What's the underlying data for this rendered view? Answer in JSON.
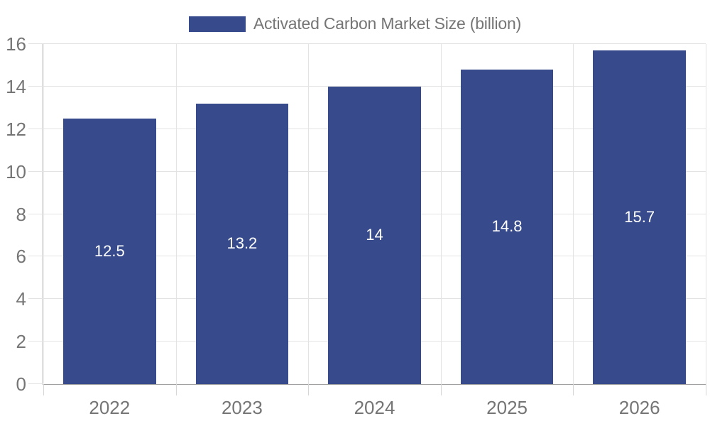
{
  "legend": {
    "label": "Activated Carbon Market Size (billion)"
  },
  "chart_data": {
    "type": "bar",
    "title": "Activated Carbon Market Size (billion)",
    "categories": [
      "2022",
      "2023",
      "2024",
      "2025",
      "2026"
    ],
    "series": [
      {
        "name": "Activated Carbon Market Size (billion)",
        "values": [
          12.5,
          13.2,
          14,
          14.8,
          15.7
        ]
      }
    ],
    "value_labels": [
      "12.5",
      "13.2",
      "14",
      "14.8",
      "15.7"
    ],
    "xlabel": "",
    "ylabel": "",
    "ylim": [
      0,
      16
    ],
    "yticks": [
      0,
      2,
      4,
      6,
      8,
      10,
      12,
      14,
      16
    ],
    "grid": true,
    "legend_position": "top-center",
    "bar_width_fraction": 0.7,
    "colors": {
      "bar": "#364A8C",
      "grid": "#E3E3E3",
      "axis": "#A0A0A0",
      "x_tick": "#D6D6D6",
      "y_tick": "#E3E3E3",
      "tick_label": "#757575",
      "legend_label": "#757575",
      "value_label": "#FFFFFF",
      "background": "#FFFFFF"
    }
  }
}
